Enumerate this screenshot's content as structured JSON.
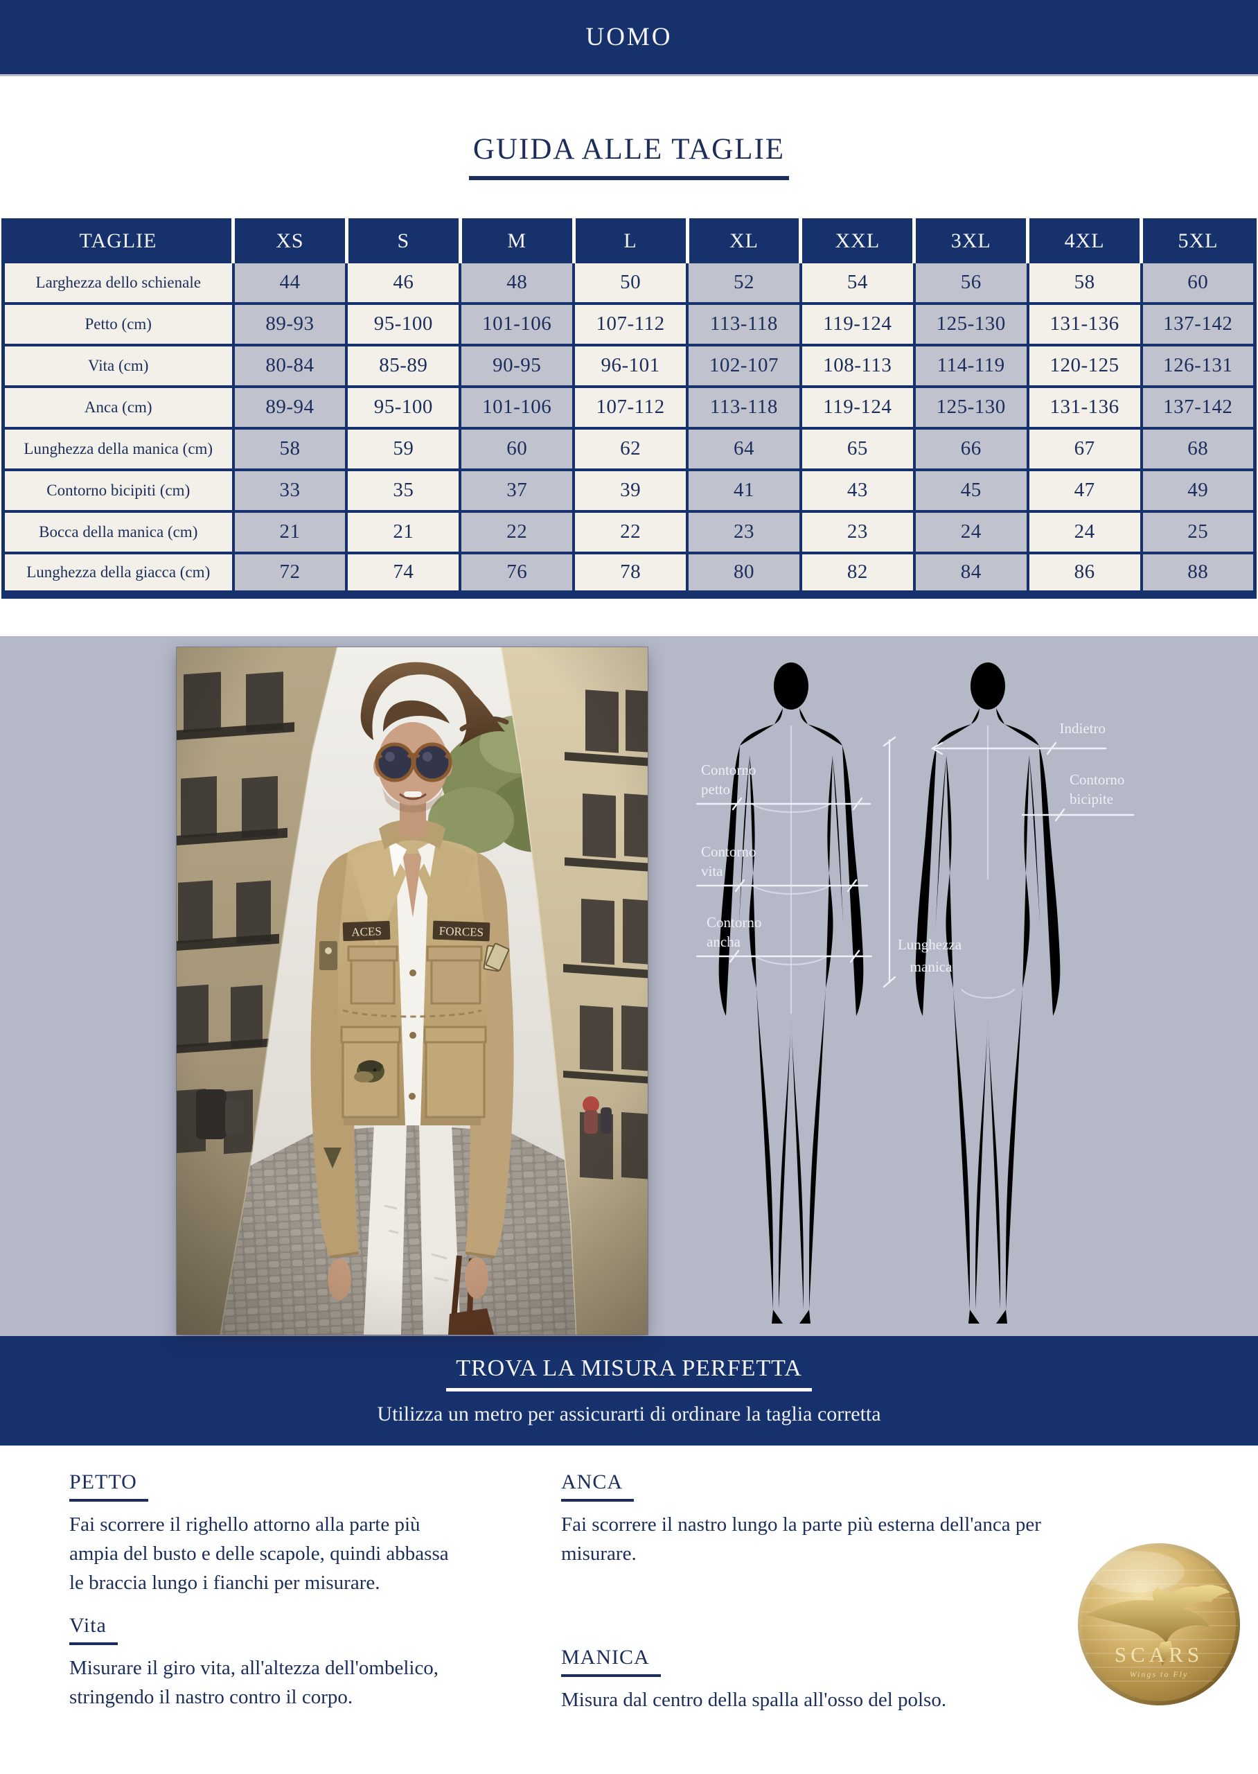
{
  "header": {
    "title": "UOMO"
  },
  "size_guide": {
    "title": "GUIDA ALLE TAGLIE"
  },
  "table": {
    "header": [
      "TAGLIE",
      "XS",
      "S",
      "M",
      "L",
      "XL",
      "XXL",
      "3XL",
      "4XL",
      "5XL"
    ],
    "rows": [
      {
        "label": "Larghezza dello schienale",
        "values": [
          "44",
          "46",
          "48",
          "50",
          "52",
          "54",
          "56",
          "58",
          "60"
        ]
      },
      {
        "label": "Petto (cm)",
        "values": [
          "89-93",
          "95-100",
          "101-106",
          "107-112",
          "113-118",
          "119-124",
          "125-130",
          "131-136",
          "137-142"
        ]
      },
      {
        "label": "Vita (cm)",
        "values": [
          "80-84",
          "85-89",
          "90-95",
          "96-101",
          "102-107",
          "108-113",
          "114-119",
          "120-125",
          "126-131"
        ]
      },
      {
        "label": "Anca (cm)",
        "values": [
          "89-94",
          "95-100",
          "101-106",
          "107-112",
          "113-118",
          "119-124",
          "125-130",
          "131-136",
          "137-142"
        ]
      },
      {
        "label": "Lunghezza della manica (cm)",
        "values": [
          "58",
          "59",
          "60",
          "62",
          "64",
          "65",
          "66",
          "67",
          "68"
        ]
      },
      {
        "label": "Contorno bicipiti (cm)",
        "values": [
          "33",
          "35",
          "37",
          "39",
          "41",
          "43",
          "45",
          "47",
          "49"
        ]
      },
      {
        "label": "Bocca della manica (cm)",
        "values": [
          "21",
          "21",
          "22",
          "22",
          "23",
          "23",
          "24",
          "24",
          "25"
        ]
      },
      {
        "label": "Lunghezza della giacca (cm)",
        "values": [
          "72",
          "74",
          "76",
          "78",
          "80",
          "82",
          "84",
          "86",
          "88"
        ]
      }
    ]
  },
  "photo": {
    "patches": {
      "left": "ACES",
      "right": "FORCES"
    }
  },
  "diagram": {
    "chest": [
      "Contorno",
      "petto"
    ],
    "waist": [
      "Contorno",
      "vita"
    ],
    "hip": [
      "Contorno",
      "ancha"
    ],
    "sleeve": [
      "Lunghezza",
      "manica"
    ],
    "back": "Indietro",
    "bicep": [
      "Contorno",
      "bicipite"
    ]
  },
  "banner": {
    "title": "TROVA LA MISURA PERFETTA",
    "subtitle": "Utilizza un metro per assicurarti di ordinare la taglia corretta"
  },
  "instructions": [
    {
      "heading": "PETTO",
      "text": "Fai scorrere il righello attorno alla parte più ampia del busto e delle scapole, quindi abbassa le braccia lungo i fianchi per misurare."
    },
    {
      "heading": "Vita",
      "text": "Misurare il giro vita, all'altezza dell'ombelico, stringendo il nastro contro il corpo."
    },
    {
      "heading": "ANCA",
      "text": "Fai scorrere il nastro lungo la parte più esterna dell'anca per misurare."
    },
    {
      "heading": "MANICA",
      "text": "Misura dal centro della spalla all'osso del polso."
    }
  ],
  "logo": {
    "brand": "SCARS",
    "tagline": "Wings to Fly"
  },
  "colors": {
    "navy": "#17316d",
    "navy_text": "#1c2d5c",
    "cream": "#f2f0e8",
    "gray_cell": "#c0c3cd",
    "mid_bg": "#b4b8c7",
    "gold": "#c8a559"
  }
}
